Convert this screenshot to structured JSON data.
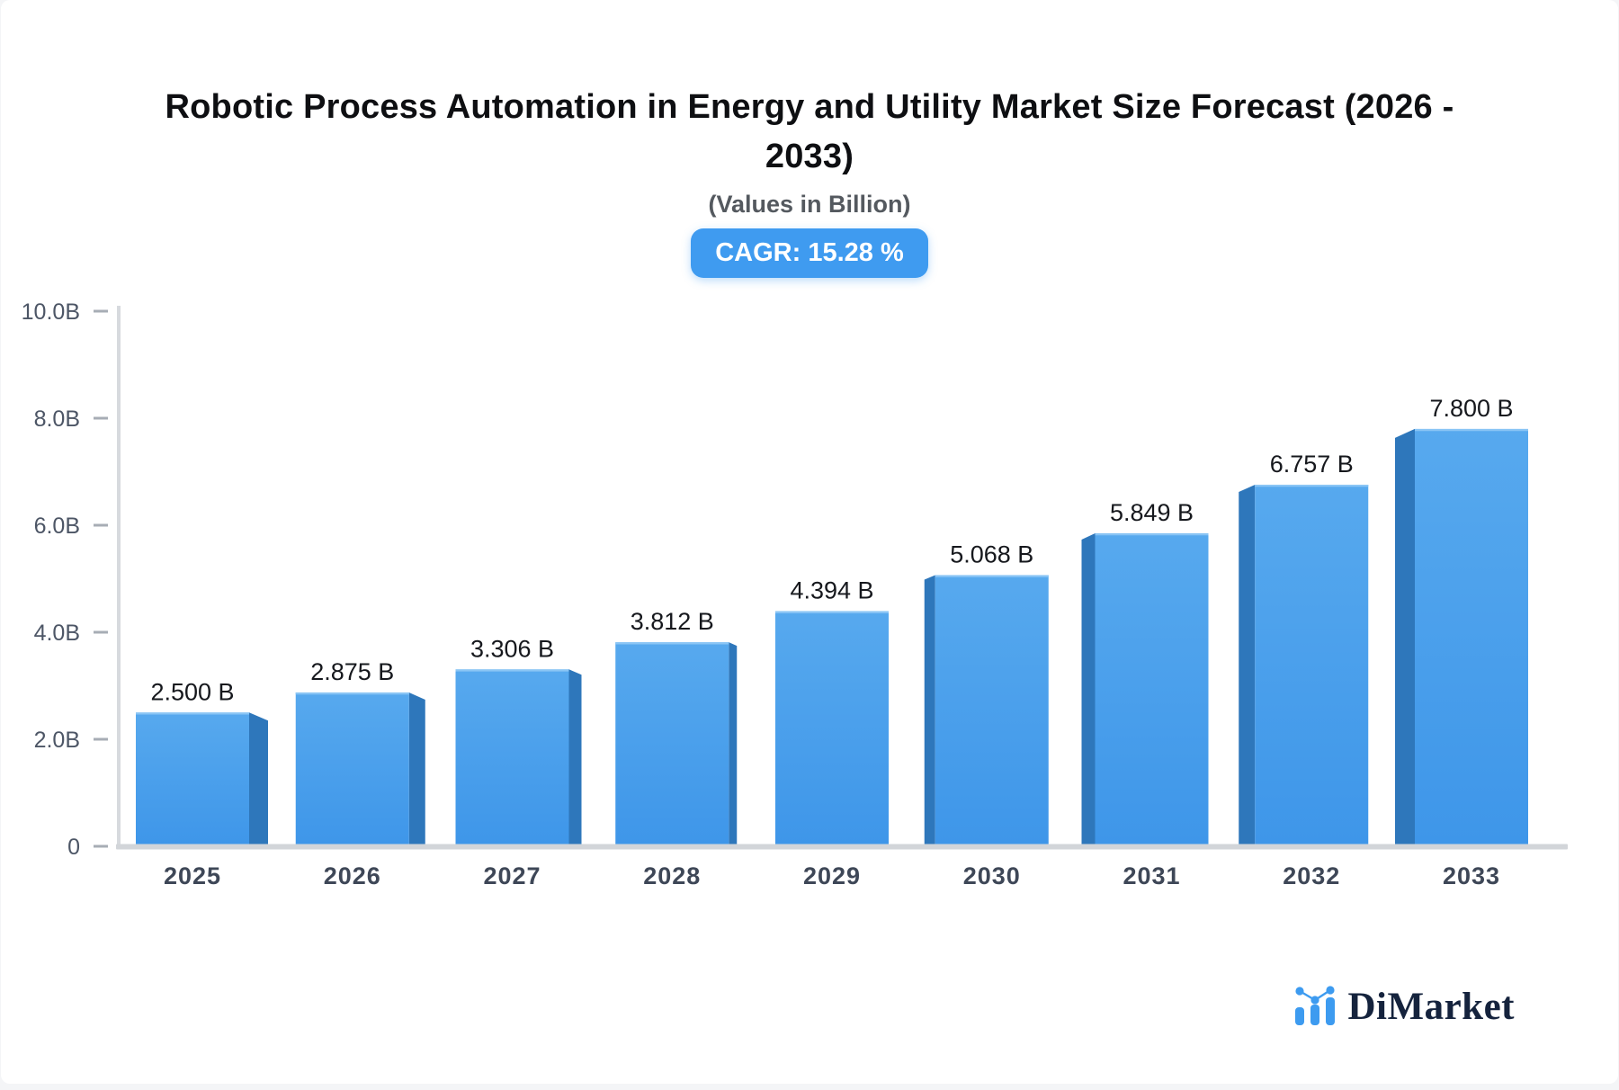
{
  "title": {
    "line1": "Robotic Process Automation in Energy and Utility Market Size Forecast (2026 -",
    "line2": "2033)"
  },
  "subtitle": "(Values in Billion)",
  "cagr_badge": "CAGR: 15.28 %",
  "branding": {
    "name": "DiMarket",
    "icon": "bar-chart-logo-icon"
  },
  "colors": {
    "bar_front_top": "#57a9ee",
    "bar_front_bottom": "#3e96e9",
    "bar_side": "#2e77bb",
    "bar_top_highlight": "#8ac5f5",
    "badge_blue": "#3f9bf0",
    "axis_line": "#d7dade",
    "baseline": "#d2d5d9",
    "tick_mark": "#a7adb5",
    "tick_label": "#4d5666",
    "year_label": "#3e4757",
    "value_label": "#16181d",
    "logo_blue": "#3d9bf0",
    "logo_navy": "#15233d"
  },
  "chart_data": {
    "type": "bar",
    "title": "Robotic Process Automation in Energy and Utility Market Size Forecast (2026 - 2033)",
    "subtitle": "(Values in Billion)",
    "unit": "Billion",
    "cagr_percent": 15.28,
    "categories": [
      "2025",
      "2026",
      "2027",
      "2028",
      "2029",
      "2030",
      "2031",
      "2032",
      "2033"
    ],
    "values": [
      2.5,
      2.875,
      3.306,
      3.812,
      4.394,
      5.068,
      5.849,
      6.757,
      7.8
    ],
    "value_labels": [
      "2.500 B",
      "2.875 B",
      "3.306 B",
      "3.812 B",
      "4.394 B",
      "5.068 B",
      "5.849 B",
      "6.757 B",
      "7.800 B"
    ],
    "xlabel": "",
    "ylabel": "",
    "ylim": [
      0,
      10
    ],
    "yticks": [
      {
        "label": "10.0B",
        "value": 10
      },
      {
        "label": "8.0B",
        "value": 8
      },
      {
        "label": "6.0B",
        "value": 6
      },
      {
        "label": "4.0B",
        "value": 4
      },
      {
        "label": "2.0B",
        "value": 2
      },
      {
        "label": "0",
        "value": 0
      }
    ],
    "grid": false,
    "legend": null,
    "bar_style": "3d-perspective"
  }
}
